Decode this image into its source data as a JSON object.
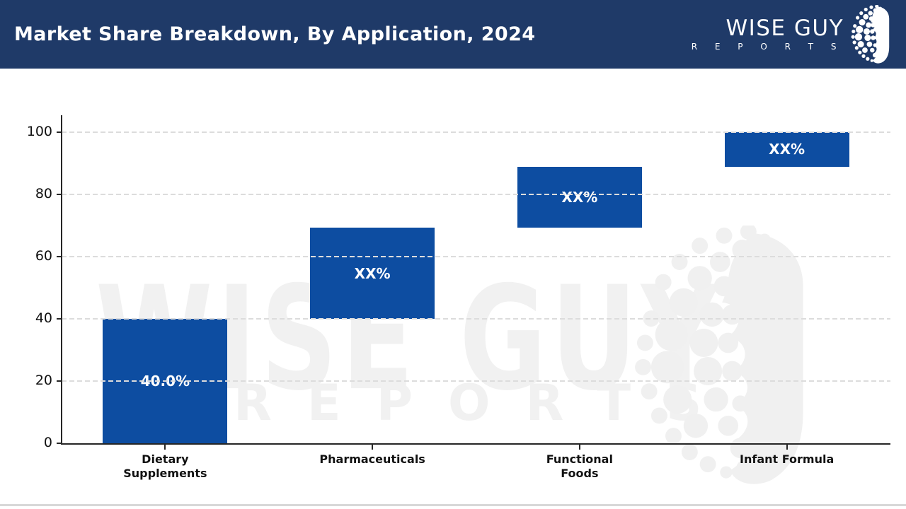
{
  "header": {
    "title": "Market Share Breakdown, By Application, 2024",
    "bg_color": "#1f3a68",
    "logo": {
      "line1": "WISE GUY",
      "line2": "R E P O R T S"
    }
  },
  "watermark": {
    "line1": "WISE GUY",
    "line2": "REPORTS"
  },
  "chart_data": {
    "type": "bar",
    "variant": "waterfall",
    "title": "Market Share Breakdown, By Application, 2024",
    "categories": [
      "Dietary Supplements",
      "Pharmaceuticals",
      "Functional Foods",
      "Infant Formula"
    ],
    "segments": [
      {
        "category": "Dietary Supplements",
        "start": 0,
        "end": 40,
        "label": "40.0%"
      },
      {
        "category": "Pharmaceuticals",
        "start": 40,
        "end": 69.3,
        "label": "XX%"
      },
      {
        "category": "Functional Foods",
        "start": 69.3,
        "end": 88.9,
        "label": "XX%"
      },
      {
        "category": "Infant Formula",
        "start": 88.9,
        "end": 100,
        "label": "XX%"
      }
    ],
    "yticks": [
      0,
      20,
      40,
      60,
      80,
      100
    ],
    "ylim": [
      0,
      105.5
    ],
    "xlabel": "",
    "ylabel": "",
    "bar_color": "#0d4da1",
    "bar_label_color": "#ffffff",
    "grid": {
      "axis": "y",
      "style": "dashed",
      "color": "#dcdcdc",
      "over_bars": true
    },
    "legend": "none"
  }
}
